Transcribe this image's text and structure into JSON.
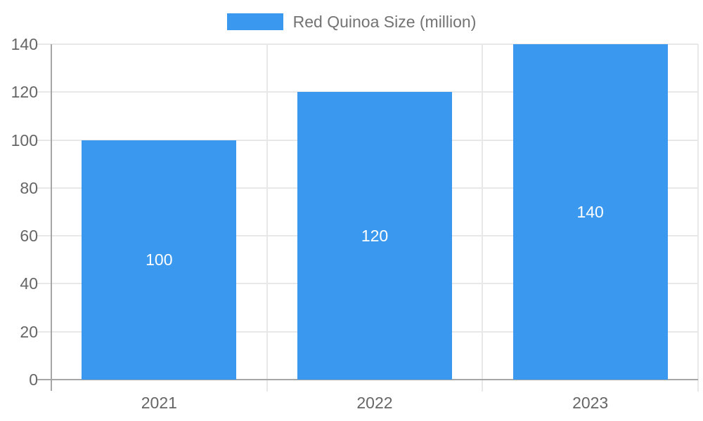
{
  "chart_data": {
    "type": "bar",
    "title": "",
    "legend": "Red Quinoa Size (million)",
    "legend_position": "top",
    "categories": [
      "2021",
      "2022",
      "2023"
    ],
    "values": [
      100,
      120,
      140
    ],
    "data_labels": [
      "100",
      "120",
      "140"
    ],
    "y_ticks": [
      0,
      20,
      40,
      60,
      80,
      100,
      120,
      140
    ],
    "ylim": [
      0,
      140
    ],
    "xlabel": "",
    "ylabel": "",
    "grid": true,
    "colors": {
      "bar": "#3a99ee",
      "bar_label_text": "#ffffff",
      "axis_text": "#666666",
      "legend_text": "#737373",
      "gridline": "#e8e8e8",
      "axis_line": "#a6a6a6",
      "background": "#ffffff"
    }
  }
}
